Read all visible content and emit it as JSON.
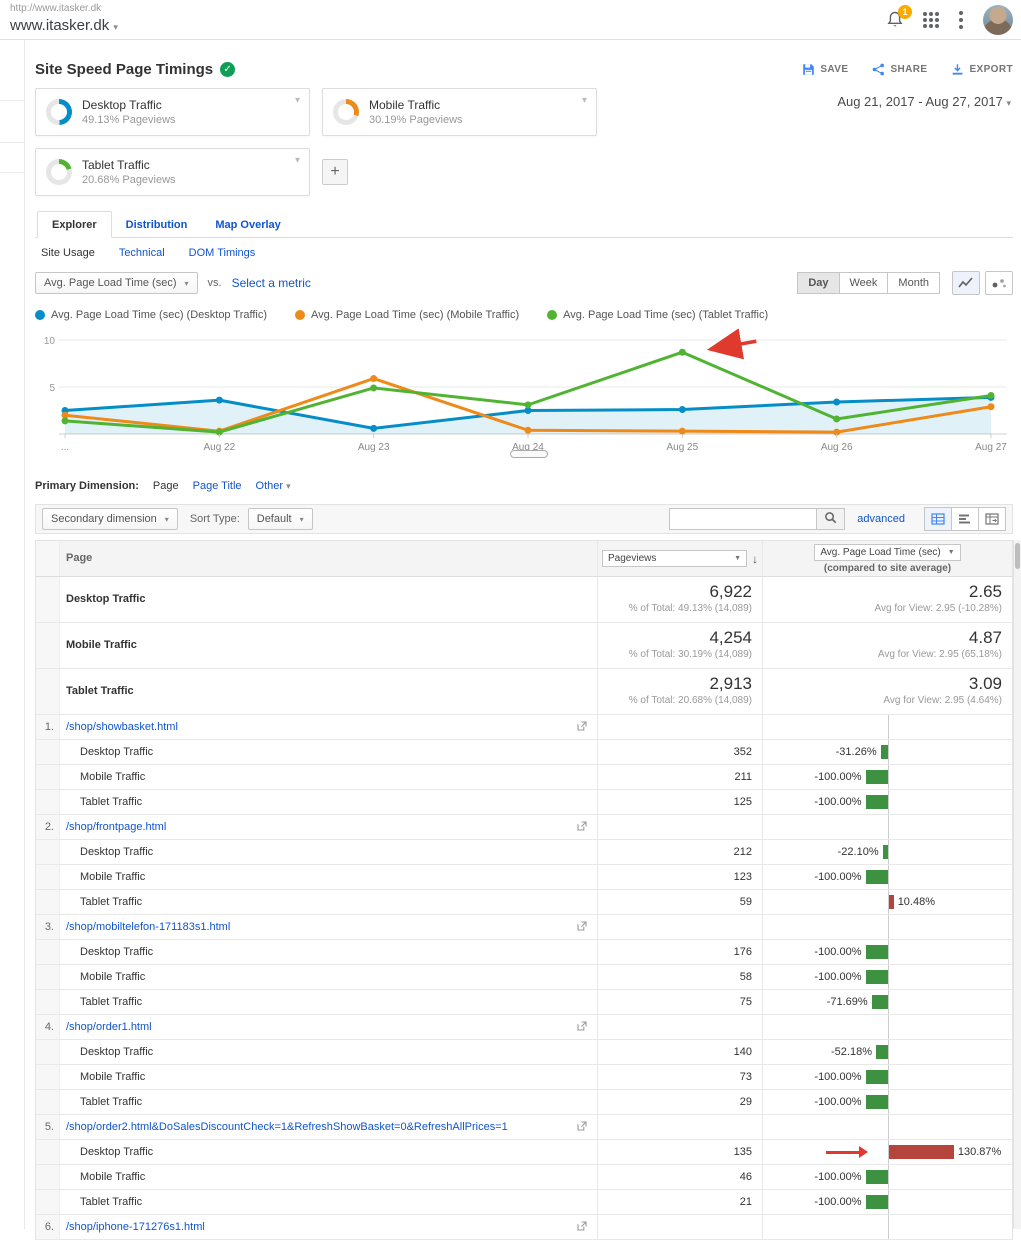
{
  "topbar": {
    "url": "http://www.itasker.dk",
    "account": "www.itasker.dk",
    "notification_count": "1"
  },
  "header": {
    "title": "Site Speed Page Timings",
    "save": "SAVE",
    "share": "SHARE",
    "export": "EXPORT",
    "date_range": "Aug 21, 2017 - Aug 27, 2017"
  },
  "segments": [
    {
      "name": "Desktop Traffic",
      "detail": "49.13% Pageviews",
      "pct": 49.13,
      "color": "#058dc7"
    },
    {
      "name": "Mobile Traffic",
      "detail": "30.19% Pageviews",
      "pct": 30.19,
      "color": "#ed8a19"
    },
    {
      "name": "Tablet Traffic",
      "detail": "20.68% Pageviews",
      "pct": 20.68,
      "color": "#50b432"
    }
  ],
  "tabs": [
    {
      "label": "Explorer",
      "active": true
    },
    {
      "label": "Distribution",
      "active": false
    },
    {
      "label": "Map Overlay",
      "active": false
    }
  ],
  "subtabs": [
    {
      "label": "Site Usage",
      "active": true
    },
    {
      "label": "Technical",
      "active": false
    },
    {
      "label": "DOM Timings",
      "active": false
    }
  ],
  "metric_bar": {
    "metric": "Avg. Page Load Time (sec)",
    "vs": "vs.",
    "select_metric": "Select a metric",
    "granularity": [
      "Day",
      "Week",
      "Month"
    ],
    "active_granularity": "Day"
  },
  "chart_data": {
    "type": "line",
    "x": [
      "...",
      "Aug 22",
      "Aug 23",
      "Aug 24",
      "Aug 25",
      "Aug 26",
      "Aug 27"
    ],
    "ylim": [
      0,
      10
    ],
    "yticks": [
      5,
      10
    ],
    "grid": true,
    "legend_position": "top",
    "series": [
      {
        "name": "Avg. Page Load Time (sec) (Desktop Traffic)",
        "color": "#058dc7",
        "area": true,
        "values": [
          2.5,
          3.6,
          0.6,
          2.5,
          2.6,
          3.4,
          3.9
        ]
      },
      {
        "name": "Avg. Page Load Time (sec) (Mobile Traffic)",
        "color": "#ed8a19",
        "values": [
          2.0,
          0.3,
          5.9,
          0.4,
          0.3,
          0.2,
          2.9
        ]
      },
      {
        "name": "Avg. Page Load Time (sec) (Tablet Traffic)",
        "color": "#50b432",
        "values": [
          1.4,
          0.2,
          4.9,
          3.1,
          8.7,
          1.6,
          4.1
        ]
      }
    ],
    "annotations": [
      {
        "type": "arrow",
        "target": "Tablet Traffic peak on Aug 25",
        "color": "#e03a2f"
      },
      {
        "type": "arrow",
        "target": "Desktop Traffic 130.87% bar in row 5",
        "color": "#e03a2f"
      }
    ]
  },
  "primary_dimension": {
    "label": "Primary Dimension:",
    "active": "Page",
    "options": [
      "Page Title",
      "Other"
    ]
  },
  "table_controls": {
    "secondary_dimension": "Secondary dimension",
    "sort_type_label": "Sort Type:",
    "sort_type_value": "Default",
    "advanced": "advanced"
  },
  "table": {
    "columns": {
      "page": "Page",
      "pageviews": "Pageviews",
      "avg": "Avg. Page Load Time (sec)",
      "avg_sub": "(compared to site average)"
    },
    "summary_rows": [
      {
        "name": "Desktop Traffic",
        "pageviews": "6,922",
        "pageviews_sub": "% of Total: 49.13% (14,089)",
        "avg": "2.65",
        "avg_sub": "Avg for View: 2.95 (-10.28%)"
      },
      {
        "name": "Mobile Traffic",
        "pageviews": "4,254",
        "pageviews_sub": "% of Total: 30.19% (14,089)",
        "avg": "4.87",
        "avg_sub": "Avg for View: 2.95 (65.18%)"
      },
      {
        "name": "Tablet Traffic",
        "pageviews": "2,913",
        "pageviews_sub": "% of Total: 20.68% (14,089)",
        "avg": "3.09",
        "avg_sub": "Avg for View: 2.95 (4.64%)"
      }
    ],
    "groups": [
      {
        "index": "1.",
        "page": "/shop/showbasket.html",
        "rows": [
          {
            "segment": "Desktop Traffic",
            "pageviews": "352",
            "delta_label": "-31.26%",
            "delta": -31.26
          },
          {
            "segment": "Mobile Traffic",
            "pageviews": "211",
            "delta_label": "-100.00%",
            "delta": -100
          },
          {
            "segment": "Tablet Traffic",
            "pageviews": "125",
            "delta_label": "-100.00%",
            "delta": -100
          }
        ]
      },
      {
        "index": "2.",
        "page": "/shop/frontpage.html",
        "rows": [
          {
            "segment": "Desktop Traffic",
            "pageviews": "212",
            "delta_label": "-22.10%",
            "delta": -22.1
          },
          {
            "segment": "Mobile Traffic",
            "pageviews": "123",
            "delta_label": "-100.00%",
            "delta": -100
          },
          {
            "segment": "Tablet Traffic",
            "pageviews": "59",
            "delta_label": "10.48%",
            "delta": 10.48
          }
        ]
      },
      {
        "index": "3.",
        "page": "/shop/mobiltelefon-171183s1.html",
        "rows": [
          {
            "segment": "Desktop Traffic",
            "pageviews": "176",
            "delta_label": "-100.00%",
            "delta": -100
          },
          {
            "segment": "Mobile Traffic",
            "pageviews": "58",
            "delta_label": "-100.00%",
            "delta": -100
          },
          {
            "segment": "Tablet Traffic",
            "pageviews": "75",
            "delta_label": "-71.69%",
            "delta": -71.69
          }
        ]
      },
      {
        "index": "4.",
        "page": "/shop/order1.html",
        "rows": [
          {
            "segment": "Desktop Traffic",
            "pageviews": "140",
            "delta_label": "-52.18%",
            "delta": -52.18
          },
          {
            "segment": "Mobile Traffic",
            "pageviews": "73",
            "delta_label": "-100.00%",
            "delta": -100
          },
          {
            "segment": "Tablet Traffic",
            "pageviews": "29",
            "delta_label": "-100.00%",
            "delta": -100
          }
        ]
      },
      {
        "index": "5.",
        "page": "/shop/order2.html&DoSalesDiscountCheck=1&RefreshShowBasket=0&RefreshAllPrices=1",
        "rows": [
          {
            "segment": "Desktop Traffic",
            "pageviews": "135",
            "delta_label": "130.87%",
            "delta": 130.87,
            "arrow": true
          },
          {
            "segment": "Mobile Traffic",
            "pageviews": "46",
            "delta_label": "-100.00%",
            "delta": -100
          },
          {
            "segment": "Tablet Traffic",
            "pageviews": "21",
            "delta_label": "-100.00%",
            "delta": -100
          }
        ]
      },
      {
        "index": "6.",
        "page": "/shop/iphone-171276s1.html",
        "rows": []
      }
    ]
  },
  "colors": {
    "positive_bar": "#b5443c",
    "negative_bar": "#3d9140",
    "link": "#1155cc",
    "annotation": "#e03a2f"
  },
  "glyphs": {
    "caret": "▾",
    "select_caret": "▼",
    "sort_desc": "↓",
    "plus": "+",
    "check": "✓"
  }
}
